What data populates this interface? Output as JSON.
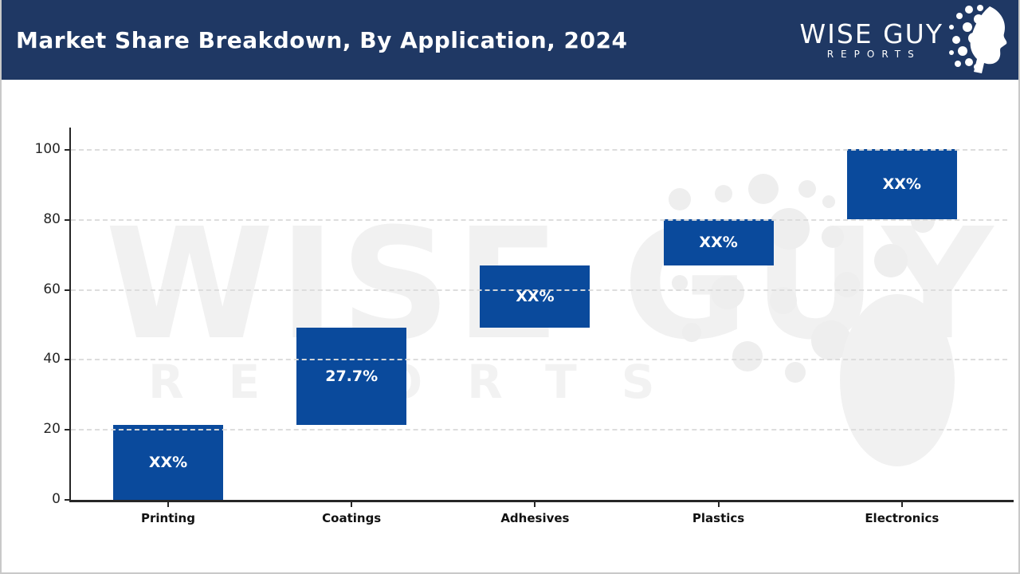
{
  "header": {
    "title": "Market Share Breakdown, By Application, 2024",
    "logo": {
      "wordmark": "WISE GUY",
      "sub": "REPORTS"
    }
  },
  "watermark": {
    "line1": "WISE GUY",
    "line2": "REPORTS"
  },
  "chart_data": {
    "type": "bar",
    "subtype": "waterfall",
    "title": "Market Share Breakdown, By Application, 2024",
    "categories": [
      "Printing",
      "Coatings",
      "Adhesives",
      "Plastics",
      "Electronics"
    ],
    "segments": [
      {
        "category": "Printing",
        "start": 0,
        "end": 21.5,
        "label": "XX%"
      },
      {
        "category": "Coatings",
        "start": 21.5,
        "end": 49.2,
        "label": "27.7%"
      },
      {
        "category": "Adhesives",
        "start": 49.2,
        "end": 66.9,
        "label": "XX%"
      },
      {
        "category": "Plastics",
        "start": 66.9,
        "end": 80.2,
        "label": "XX%"
      },
      {
        "category": "Electronics",
        "start": 80.2,
        "end": 100.2,
        "label": "XX%"
      }
    ],
    "xlabel": "",
    "ylabel": "",
    "yticks": [
      0,
      20,
      40,
      60,
      80,
      100
    ],
    "ylim": [
      0,
      106
    ],
    "grid": "horizontal-dashed-above-bars",
    "legend": "none",
    "colors": {
      "bar": "#0a4a9c",
      "bar_label": "#ffffff",
      "header_bg": "#1f3864",
      "axis": "#262626",
      "tick_label": "#262626",
      "gridline": "#dbdbdb",
      "watermark": "#f1f1f1",
      "page_border": "#c9c9c9"
    }
  }
}
